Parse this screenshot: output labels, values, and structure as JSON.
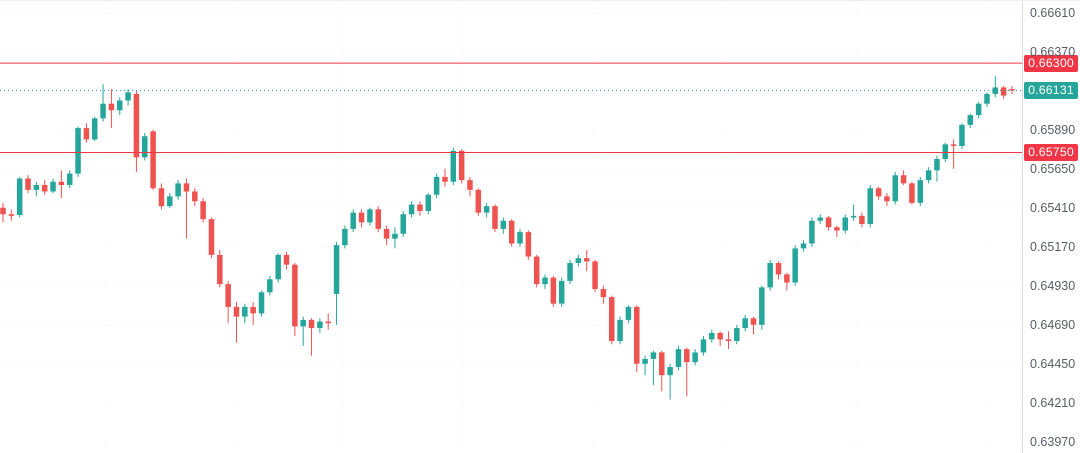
{
  "chart_data": {
    "type": "candlestick",
    "title": "",
    "xlabel": "",
    "ylabel": "",
    "grid": true,
    "legend_position": "none",
    "y_axis": {
      "top_price": 0.66682,
      "bottom_price": 0.63895,
      "ticks": [
        {
          "label": "0.66610",
          "value": 0.6661
        },
        {
          "label": "0.66370",
          "value": 0.6637
        },
        {
          "label": "0.65890",
          "value": 0.6589
        },
        {
          "label": "0.65650",
          "value": 0.6565
        },
        {
          "label": "0.65410",
          "value": 0.6541
        },
        {
          "label": "0.65170",
          "value": 0.6517
        },
        {
          "label": "0.64930",
          "value": 0.6493
        },
        {
          "label": "0.64690",
          "value": 0.6469
        },
        {
          "label": "0.64450",
          "value": 0.6445
        },
        {
          "label": "0.64210",
          "value": 0.6421
        },
        {
          "label": "0.63970",
          "value": 0.6397
        }
      ]
    },
    "price_lines": [
      {
        "label": "0.66300",
        "value": 0.663,
        "color": "#f23645"
      },
      {
        "label": "0.65750",
        "value": 0.6575,
        "color": "#f23645"
      }
    ],
    "last_price": {
      "label": "0.66131",
      "value": 0.66131,
      "color": "#26a69a",
      "line_style": "dotted"
    },
    "colors": {
      "up": "#26a69a",
      "down": "#ef5350",
      "line_red": "#f23645",
      "grid": "#f0f2f6"
    },
    "candles_format": [
      "open",
      "high",
      "low",
      "close"
    ],
    "candles": [
      [
        0.6541,
        0.6544,
        0.6532,
        0.6537
      ],
      [
        0.6537,
        0.654,
        0.6533,
        0.6536
      ],
      [
        0.65365,
        0.656,
        0.6535,
        0.6559
      ],
      [
        0.6559,
        0.6561,
        0.655,
        0.6552
      ],
      [
        0.6552,
        0.6557,
        0.6548,
        0.6555
      ],
      [
        0.6555,
        0.6558,
        0.6549,
        0.6551
      ],
      [
        0.6551,
        0.6559,
        0.655,
        0.6557
      ],
      [
        0.6557,
        0.6564,
        0.6547,
        0.6555
      ],
      [
        0.6555,
        0.6564,
        0.6553,
        0.6562
      ],
      [
        0.6562,
        0.6591,
        0.656,
        0.659
      ],
      [
        0.659,
        0.6593,
        0.6581,
        0.6583
      ],
      [
        0.6583,
        0.6597,
        0.6582,
        0.6596
      ],
      [
        0.6596,
        0.6617,
        0.6594,
        0.6605
      ],
      [
        0.6605,
        0.6614,
        0.659,
        0.6601
      ],
      [
        0.6601,
        0.6609,
        0.6598,
        0.6607
      ],
      [
        0.6607,
        0.6614,
        0.6604,
        0.6612
      ],
      [
        0.6611,
        0.6613,
        0.6563,
        0.6572
      ],
      [
        0.6572,
        0.6587,
        0.657,
        0.6585
      ],
      [
        0.6588,
        0.6589,
        0.6552,
        0.6553
      ],
      [
        0.6553,
        0.6556,
        0.654,
        0.6542
      ],
      [
        0.6542,
        0.655,
        0.6541,
        0.6548
      ],
      [
        0.6548,
        0.6558,
        0.6546,
        0.6556
      ],
      [
        0.6556,
        0.6559,
        0.6522,
        0.6551
      ],
      [
        0.6551,
        0.6553,
        0.6542,
        0.6545
      ],
      [
        0.6545,
        0.6547,
        0.6532,
        0.6534
      ],
      [
        0.6534,
        0.6535,
        0.651,
        0.6512
      ],
      [
        0.6512,
        0.6515,
        0.6492,
        0.6494
      ],
      [
        0.6494,
        0.6496,
        0.647,
        0.648
      ],
      [
        0.648,
        0.6483,
        0.6458,
        0.6474
      ],
      [
        0.6474,
        0.6482,
        0.647,
        0.648
      ],
      [
        0.648,
        0.6483,
        0.6469,
        0.6476
      ],
      [
        0.6476,
        0.649,
        0.6474,
        0.6489
      ],
      [
        0.6489,
        0.6499,
        0.6487,
        0.6497
      ],
      [
        0.6497,
        0.6513,
        0.6495,
        0.6512
      ],
      [
        0.6512,
        0.6514,
        0.6503,
        0.6506
      ],
      [
        0.6506,
        0.6507,
        0.6462,
        0.6468
      ],
      [
        0.6468,
        0.6474,
        0.6456,
        0.6472
      ],
      [
        0.6472,
        0.6473,
        0.645,
        0.6467
      ],
      [
        0.6467,
        0.6473,
        0.6464,
        0.6471
      ],
      [
        0.6471,
        0.6476,
        0.6466,
        0.647
      ],
      [
        0.6488,
        0.652,
        0.6469,
        0.6518
      ],
      [
        0.6518,
        0.653,
        0.6516,
        0.6528
      ],
      [
        0.6528,
        0.654,
        0.6526,
        0.6538
      ],
      [
        0.6538,
        0.654,
        0.6529,
        0.6532
      ],
      [
        0.6532,
        0.6541,
        0.653,
        0.654
      ],
      [
        0.654,
        0.6542,
        0.6526,
        0.6528
      ],
      [
        0.6528,
        0.653,
        0.6518,
        0.6522
      ],
      [
        0.6522,
        0.6529,
        0.6516,
        0.6525
      ],
      [
        0.6525,
        0.6539,
        0.6523,
        0.6537
      ],
      [
        0.6537,
        0.6545,
        0.6535,
        0.6543
      ],
      [
        0.6543,
        0.6545,
        0.6536,
        0.6539
      ],
      [
        0.6539,
        0.655,
        0.6537,
        0.6549
      ],
      [
        0.6549,
        0.6562,
        0.6547,
        0.656
      ],
      [
        0.656,
        0.6565,
        0.6554,
        0.6557
      ],
      [
        0.6557,
        0.6578,
        0.6555,
        0.6576
      ],
      [
        0.6576,
        0.6577,
        0.6556,
        0.6558
      ],
      [
        0.6558,
        0.656,
        0.6548,
        0.6552
      ],
      [
        0.6552,
        0.6553,
        0.6536,
        0.6538
      ],
      [
        0.6538,
        0.6544,
        0.6535,
        0.6542
      ],
      [
        0.6542,
        0.6543,
        0.6526,
        0.6528
      ],
      [
        0.6528,
        0.6535,
        0.6525,
        0.6533
      ],
      [
        0.6533,
        0.6534,
        0.6517,
        0.6519
      ],
      [
        0.6519,
        0.6528,
        0.6517,
        0.6526
      ],
      [
        0.6526,
        0.6527,
        0.6509,
        0.6511
      ],
      [
        0.6511,
        0.6512,
        0.6492,
        0.6494
      ],
      [
        0.6494,
        0.65,
        0.6491,
        0.6498
      ],
      [
        0.6498,
        0.6499,
        0.648,
        0.6482
      ],
      [
        0.6482,
        0.6498,
        0.648,
        0.6496
      ],
      [
        0.6496,
        0.6509,
        0.6494,
        0.6507
      ],
      [
        0.6507,
        0.6512,
        0.6505,
        0.651
      ],
      [
        0.651,
        0.6515,
        0.6502,
        0.6508
      ],
      [
        0.6508,
        0.6509,
        0.6489,
        0.6491
      ],
      [
        0.6491,
        0.6493,
        0.6482,
        0.6486
      ],
      [
        0.6486,
        0.6487,
        0.6457,
        0.6459
      ],
      [
        0.6459,
        0.6474,
        0.6457,
        0.6472
      ],
      [
        0.6472,
        0.6481,
        0.647,
        0.648
      ],
      [
        0.648,
        0.6481,
        0.644,
        0.6445
      ],
      [
        0.6445,
        0.645,
        0.6438,
        0.6448
      ],
      [
        0.6448,
        0.6453,
        0.6432,
        0.6452
      ],
      [
        0.6452,
        0.6453,
        0.6428,
        0.6438
      ],
      [
        0.6438,
        0.6445,
        0.6423,
        0.6443
      ],
      [
        0.6443,
        0.6456,
        0.6441,
        0.6454
      ],
      [
        0.6454,
        0.6455,
        0.6425,
        0.6446
      ],
      [
        0.6446,
        0.6454,
        0.6444,
        0.6452
      ],
      [
        0.6452,
        0.6462,
        0.645,
        0.646
      ],
      [
        0.646,
        0.6466,
        0.6458,
        0.6464
      ],
      [
        0.6464,
        0.6465,
        0.6456,
        0.646
      ],
      [
        0.646,
        0.6465,
        0.6454,
        0.6459
      ],
      [
        0.6459,
        0.6469,
        0.6457,
        0.6467
      ],
      [
        0.6467,
        0.6475,
        0.6465,
        0.6473
      ],
      [
        0.6473,
        0.6474,
        0.6463,
        0.6469
      ],
      [
        0.6469,
        0.6493,
        0.6466,
        0.6492
      ],
      [
        0.6492,
        0.6509,
        0.649,
        0.6507
      ],
      [
        0.6507,
        0.6508,
        0.6497,
        0.65
      ],
      [
        0.65,
        0.6501,
        0.649,
        0.6495
      ],
      [
        0.6495,
        0.6518,
        0.6493,
        0.6516
      ],
      [
        0.6516,
        0.6521,
        0.6514,
        0.6519
      ],
      [
        0.6519,
        0.6535,
        0.6517,
        0.6533
      ],
      [
        0.6533,
        0.6537,
        0.6531,
        0.6535
      ],
      [
        0.6535,
        0.6536,
        0.6527,
        0.6529
      ],
      [
        0.6529,
        0.653,
        0.6523,
        0.6527
      ],
      [
        0.6527,
        0.6537,
        0.6525,
        0.6535
      ],
      [
        0.6535,
        0.6543,
        0.6533,
        0.6536
      ],
      [
        0.6536,
        0.6538,
        0.6529,
        0.6531
      ],
      [
        0.6531,
        0.6555,
        0.6529,
        0.6553
      ],
      [
        0.6553,
        0.6554,
        0.6546,
        0.6548
      ],
      [
        0.6548,
        0.655,
        0.6542,
        0.6545
      ],
      [
        0.6545,
        0.6563,
        0.6543,
        0.6561
      ],
      [
        0.6561,
        0.6564,
        0.6555,
        0.6556
      ],
      [
        0.6556,
        0.6557,
        0.6543,
        0.6544
      ],
      [
        0.6544,
        0.656,
        0.6542,
        0.6558
      ],
      [
        0.6558,
        0.6566,
        0.6556,
        0.6564
      ],
      [
        0.6564,
        0.6573,
        0.6557,
        0.6571
      ],
      [
        0.6571,
        0.6581,
        0.6569,
        0.658
      ],
      [
        0.658,
        0.6583,
        0.6565,
        0.6579
      ],
      [
        0.6579,
        0.6593,
        0.6577,
        0.6592
      ],
      [
        0.6592,
        0.6599,
        0.659,
        0.6598
      ],
      [
        0.6598,
        0.6606,
        0.6596,
        0.6605
      ],
      [
        0.6605,
        0.6612,
        0.6603,
        0.6611
      ],
      [
        0.6611,
        0.6622,
        0.6609,
        0.6615
      ],
      [
        0.6615,
        0.6616,
        0.6608,
        0.661
      ],
      [
        0.6614,
        0.6616,
        0.6611,
        0.66131
      ]
    ]
  }
}
